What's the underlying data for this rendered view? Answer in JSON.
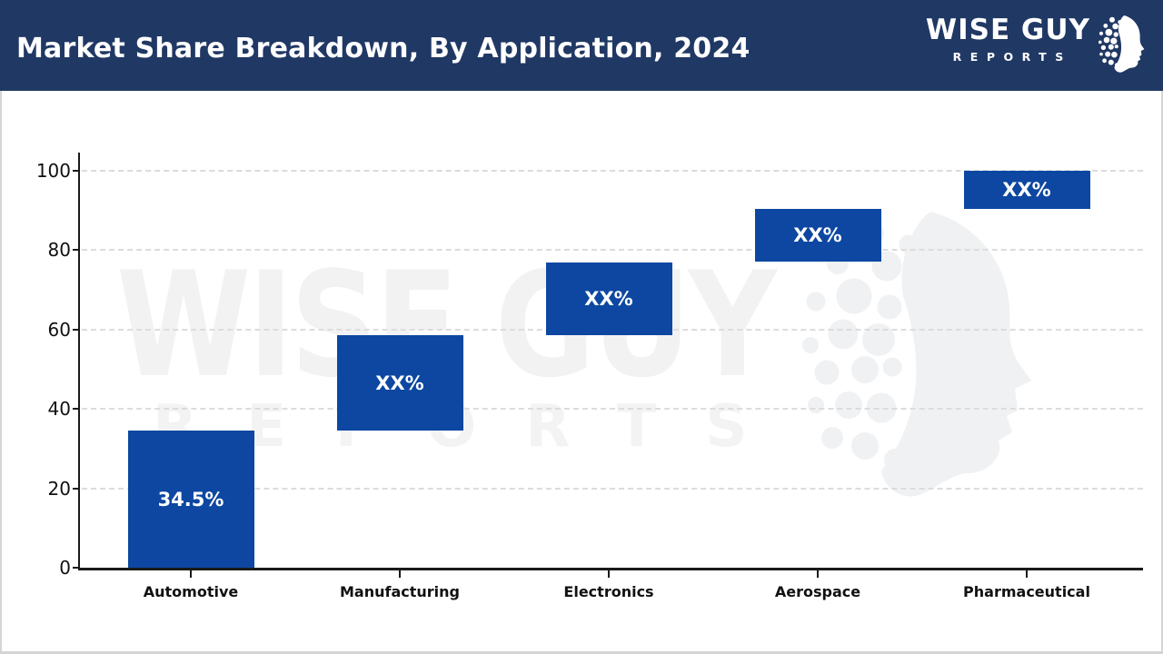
{
  "header": {
    "title": "Market Share Breakdown, By Application, 2024",
    "logo": {
      "line1": "WISE GUY",
      "line2": "REPORTS"
    }
  },
  "watermark": {
    "line1": "WISE GUY",
    "line2": "REPORTS"
  },
  "colors": {
    "header_bg": "#203864",
    "bar": "#0d47a1",
    "bar_label": "#ffffff",
    "axis": "#1a1a1a",
    "grid": "#dcdcdc",
    "watermark": "#f2f2f3"
  },
  "chart_data": {
    "type": "bar",
    "subtype": "waterfall",
    "title": "Market Share Breakdown, By Application, 2024",
    "categories": [
      "Automotive",
      "Manufacturing",
      "Electronics",
      "Aerospace",
      "Pharmaceutical"
    ],
    "values": [
      34.5,
      24,
      18.5,
      13.5,
      9.5
    ],
    "starts": [
      0,
      34.5,
      58.5,
      77,
      90.5
    ],
    "ends": [
      34.5,
      58.5,
      77,
      90.5,
      100
    ],
    "bar_labels": [
      "34.5%",
      "XX%",
      "XX%",
      "XX%",
      "XX%"
    ],
    "xlabel": "",
    "ylabel": "",
    "ylim": [
      0,
      100
    ],
    "yticks": [
      0,
      20,
      40,
      60,
      80,
      100
    ],
    "grid": "horizontal-dashed",
    "legend": "none"
  }
}
